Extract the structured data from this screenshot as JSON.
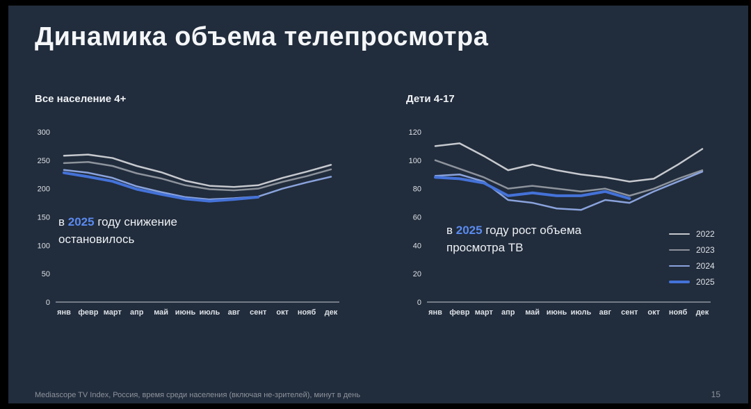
{
  "slide": {
    "title": "Динамика объема телепросмотра",
    "footer": "Mediascope TV Index, Россия, время среди населения (включая не-зрителей), минут в день",
    "page_number": "15",
    "accent_color": "#5b8bef",
    "background_color": "#212c3c"
  },
  "legend": {
    "position": "right-middle",
    "entries": [
      {
        "label": "2022",
        "color": "#c6c9ce",
        "width": 2.5
      },
      {
        "label": "2023",
        "color": "#8d939c",
        "width": 2.5
      },
      {
        "label": "2024",
        "color": "#8aa3dc",
        "width": 2.5
      },
      {
        "label": "2025",
        "color": "#4472d8",
        "width": 4
      }
    ]
  },
  "chart_data": [
    {
      "type": "line",
      "title": "Все население 4+",
      "xlabel": "",
      "ylabel": "",
      "grid": false,
      "ylim": [
        0,
        300
      ],
      "yticks": [
        0,
        50,
        100,
        150,
        200,
        250,
        300
      ],
      "categories": [
        "янв",
        "февр",
        "март",
        "апр",
        "май",
        "июнь",
        "июль",
        "авг",
        "сент",
        "окт",
        "нояб",
        "дек"
      ],
      "series": [
        {
          "name": "2022",
          "color": "#c6c9ce",
          "width": 2.5,
          "values": [
            258,
            260,
            254,
            240,
            229,
            214,
            205,
            203,
            206,
            219,
            230,
            242
          ]
        },
        {
          "name": "2023",
          "color": "#8d939c",
          "width": 2.5,
          "values": [
            245,
            247,
            240,
            227,
            218,
            206,
            199,
            197,
            200,
            212,
            222,
            234
          ]
        },
        {
          "name": "2024",
          "color": "#8aa3dc",
          "width": 2.5,
          "values": [
            233,
            228,
            219,
            204,
            194,
            185,
            181,
            183,
            186,
            200,
            211,
            221
          ]
        },
        {
          "name": "2025",
          "color": "#4472d8",
          "width": 4,
          "values": [
            228,
            221,
            213,
            199,
            190,
            182,
            178,
            181,
            185
          ]
        }
      ],
      "annotation": {
        "prefix": "в ",
        "year": "2025",
        "suffix": " году снижение остановилось"
      }
    },
    {
      "type": "line",
      "title": "Дети 4-17",
      "xlabel": "",
      "ylabel": "",
      "grid": false,
      "ylim": [
        0,
        120
      ],
      "yticks": [
        0,
        20,
        40,
        60,
        80,
        100,
        120
      ],
      "categories": [
        "янв",
        "февр",
        "март",
        "апр",
        "май",
        "июнь",
        "июль",
        "авг",
        "сент",
        "окт",
        "нояб",
        "дек"
      ],
      "series": [
        {
          "name": "2022",
          "color": "#c6c9ce",
          "width": 2.5,
          "values": [
            110,
            112,
            103,
            93,
            97,
            93,
            90,
            88,
            85,
            87,
            97,
            108
          ]
        },
        {
          "name": "2023",
          "color": "#8d939c",
          "width": 2.5,
          "values": [
            100,
            94,
            88,
            80,
            82,
            80,
            78,
            80,
            75,
            80,
            87,
            93
          ]
        },
        {
          "name": "2024",
          "color": "#8aa3dc",
          "width": 2.5,
          "values": [
            89,
            90,
            85,
            72,
            70,
            66,
            65,
            72,
            70,
            78,
            85,
            92
          ]
        },
        {
          "name": "2025",
          "color": "#4472d8",
          "width": 4,
          "values": [
            88,
            87,
            84,
            75,
            77,
            75,
            75,
            78,
            73
          ]
        }
      ],
      "annotation": {
        "prefix": "в ",
        "year": "2025",
        "suffix": " году рост объема просмотра ТВ"
      }
    }
  ]
}
